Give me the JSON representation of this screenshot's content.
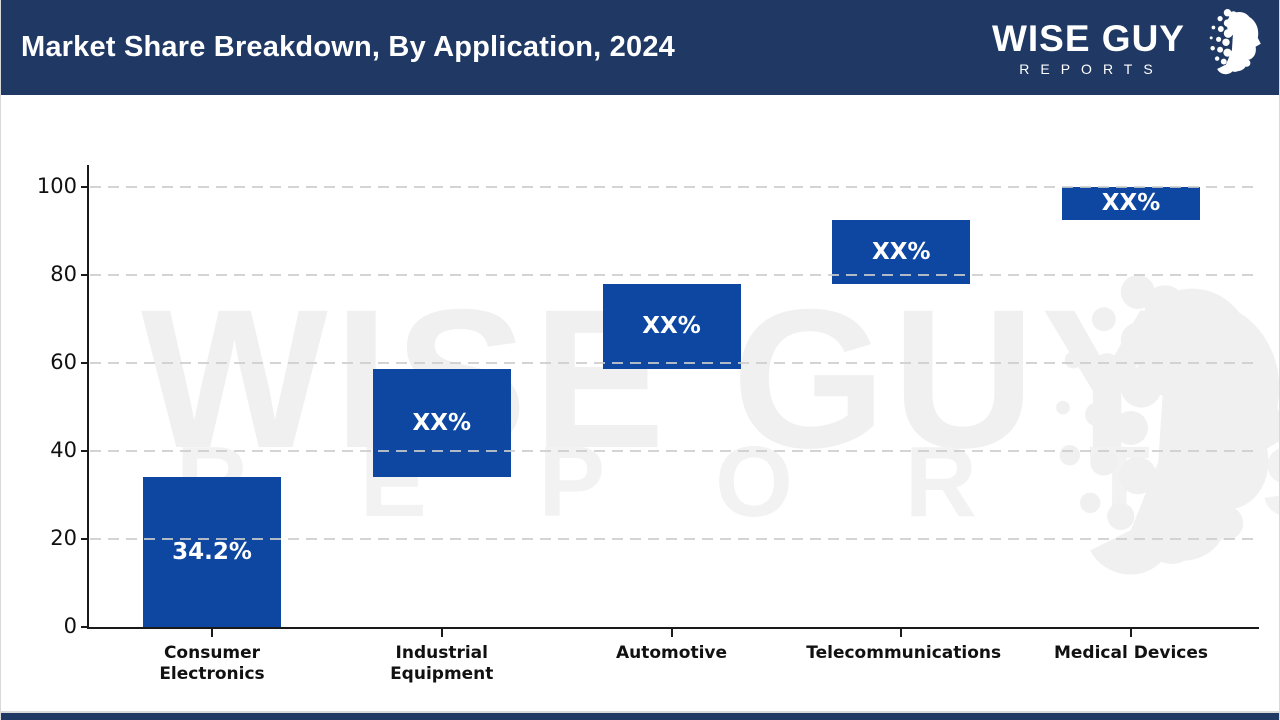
{
  "header": {
    "title": "Market Share Breakdown, By Application, 2024",
    "bg_color": "#1f3864",
    "logo": {
      "line1": "WISE GUY",
      "line2": "REPORTS"
    }
  },
  "watermark": {
    "line1": "WISE GUY",
    "line2": "R E P O R T S"
  },
  "colors": {
    "bar": "#0d47a1",
    "header_bg": "#1f3864",
    "gridline": "#cdcdcd",
    "axis": "#1a1a1a",
    "watermark": "#f0f0f0"
  },
  "chart_data": {
    "type": "bar",
    "subtype": "waterfall",
    "title": "Market Share Breakdown, By Application, 2024",
    "categories": [
      "Consumer Electronics",
      "Industrial Equipment",
      "Automotive",
      "Telecommunications",
      "Medical Devices"
    ],
    "segments": [
      {
        "category": "Consumer Electronics",
        "start": 0,
        "end": 34.2,
        "label": "34.2%"
      },
      {
        "category": "Industrial Equipment",
        "start": 34.2,
        "end": 58.6,
        "label": "XX%"
      },
      {
        "category": "Automotive",
        "start": 58.6,
        "end": 78.0,
        "label": "XX%"
      },
      {
        "category": "Telecommunications",
        "start": 78.0,
        "end": 92.6,
        "label": "XX%"
      },
      {
        "category": "Medical Devices",
        "start": 92.6,
        "end": 100,
        "label": "XX%"
      }
    ],
    "y_ticks": [
      0,
      20,
      40,
      60,
      80,
      100
    ],
    "ylim": [
      0,
      105
    ],
    "xlabel": "",
    "ylabel": "",
    "grid": "dashed horizontal, drawn over bars",
    "legend": "none",
    "bar_color": "#0d47a1",
    "value_label_color": "#ffffff"
  }
}
